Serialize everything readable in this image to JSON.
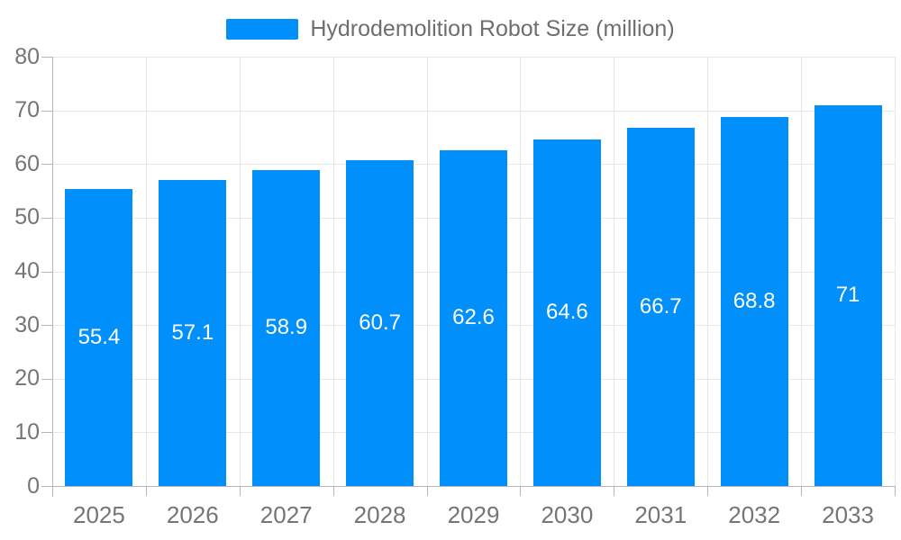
{
  "legend": {
    "label": "Hydrodemolition Robot Size (million)"
  },
  "colors": {
    "bar": "#008FFB",
    "grid": "#e7e7e7",
    "axis": "#b6b6b6",
    "axis_label": "#757575",
    "data_label": "#ffffff",
    "legend_text": "#6e6e6e",
    "background": "#ffffff"
  },
  "chart_data": {
    "type": "bar",
    "title": "Hydrodemolition Robot Size (million)",
    "categories": [
      "2025",
      "2026",
      "2027",
      "2028",
      "2029",
      "2030",
      "2031",
      "2032",
      "2033"
    ],
    "values": [
      55.4,
      57.1,
      58.9,
      60.7,
      62.6,
      64.6,
      66.7,
      68.8,
      71
    ],
    "data_labels": [
      "55.4",
      "57.1",
      "58.9",
      "60.7",
      "62.6",
      "64.6",
      "66.7",
      "68.8",
      "71"
    ],
    "xlabel": "",
    "ylabel": "",
    "ylim": [
      0,
      80
    ],
    "yticks": [
      0,
      10,
      20,
      30,
      40,
      50,
      60,
      70,
      80
    ],
    "grid": true,
    "legend_position": "top",
    "bar_color": "#008FFB",
    "data_label_position": "center"
  }
}
